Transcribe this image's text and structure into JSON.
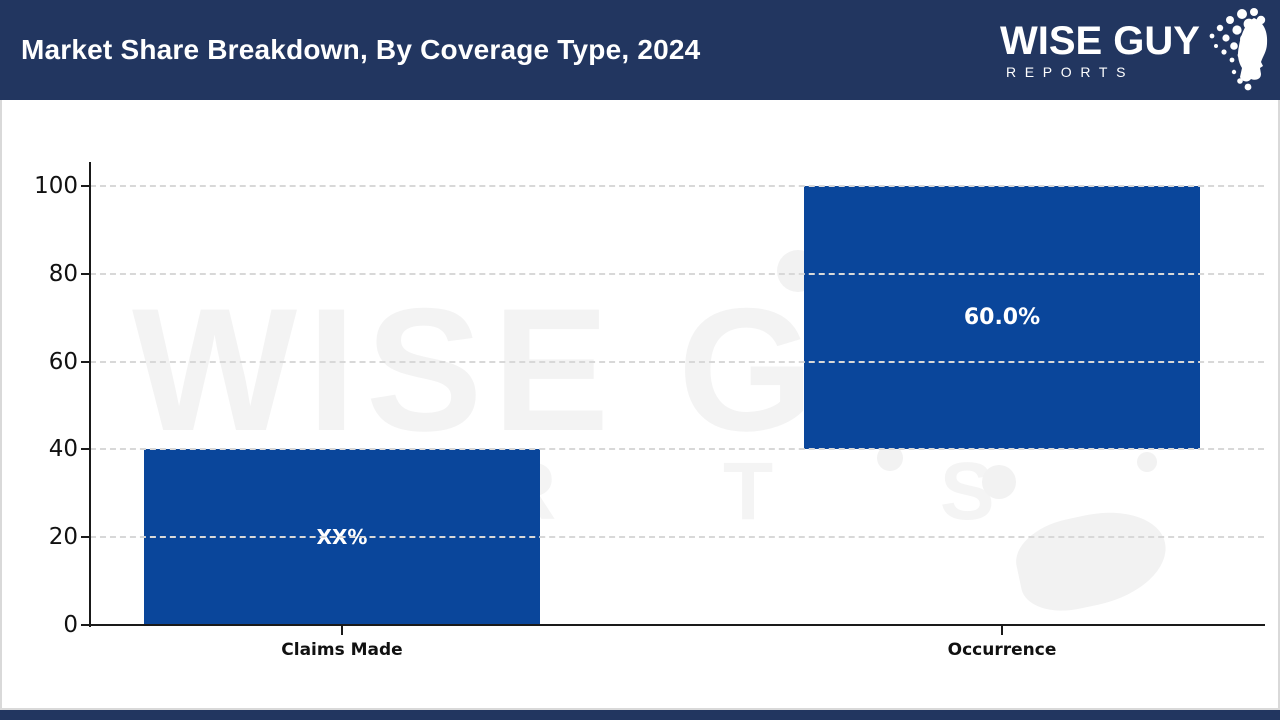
{
  "header": {
    "title": "Market Share Breakdown, By Coverage Type, 2024",
    "logo": {
      "primary": "WISE GUY",
      "secondary": "REPORTS"
    }
  },
  "chart_data": {
    "type": "bar",
    "subtype": "range-bar (stacked segments shown side by side)",
    "title": "Market Share Breakdown, By Coverage Type, 2024",
    "categories": [
      "Claims Made",
      "Occurrence"
    ],
    "bars": [
      {
        "category": "Claims Made",
        "start": 0,
        "end": 40,
        "label": "XX%"
      },
      {
        "category": "Occurrence",
        "start": 40,
        "end": 100,
        "label": "60.0%"
      }
    ],
    "xlabel": "",
    "ylabel": "",
    "yticks": [
      0,
      20,
      40,
      60,
      80,
      100
    ],
    "ylim": [
      0,
      105
    ],
    "grid": "horizontal dashed, drawn over bars",
    "legend": "none",
    "bar_color": "#0a469b"
  },
  "watermark": {
    "line1": "WISE GU",
    "line2": "R T S"
  },
  "colors": {
    "header_bg": "#223660",
    "footer_bg": "#223660",
    "bar": "#0a469b",
    "grid": "#d8d8d8",
    "axis": "#1a1a1a",
    "watermark": "#f3f3f3"
  }
}
